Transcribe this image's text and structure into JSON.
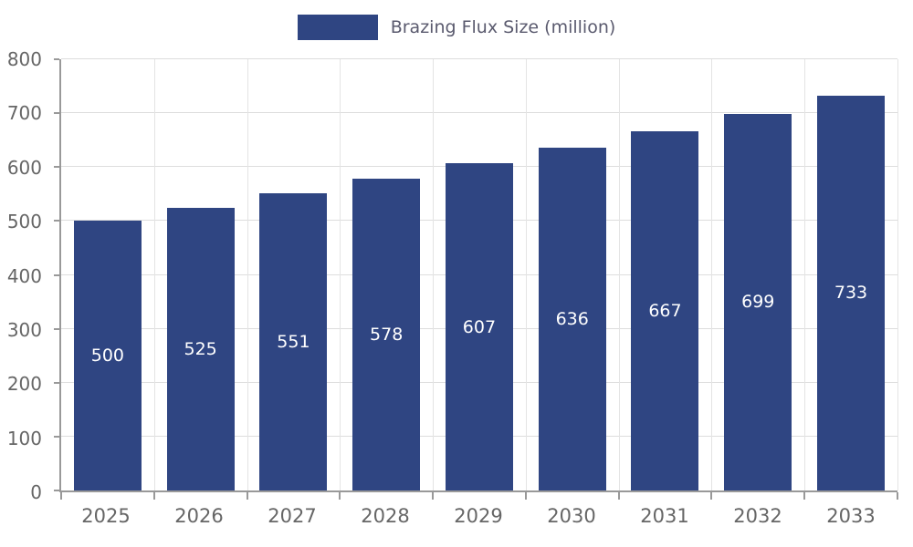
{
  "legend": {
    "label": "Brazing Flux Size (million)"
  },
  "colors": {
    "bar": "#2F4582",
    "axis": "#999999",
    "grid": "#DDDDDD",
    "tick_text": "#666666",
    "legend_text": "#5A5A6E",
    "bar_label_text": "#FFFFFF"
  },
  "chart_data": {
    "type": "bar",
    "title": "",
    "categories": [
      "2025",
      "2026",
      "2027",
      "2028",
      "2029",
      "2030",
      "2031",
      "2032",
      "2033"
    ],
    "series": [
      {
        "name": "Brazing Flux Size (million)",
        "values": [
          500,
          525,
          551,
          578,
          607,
          636,
          667,
          699,
          733
        ]
      }
    ],
    "xlabel": "",
    "ylabel": "",
    "ylim": [
      0,
      800
    ],
    "ytick_step": 100,
    "grid": true,
    "legend_position": "top",
    "bar_value_labels": true
  }
}
